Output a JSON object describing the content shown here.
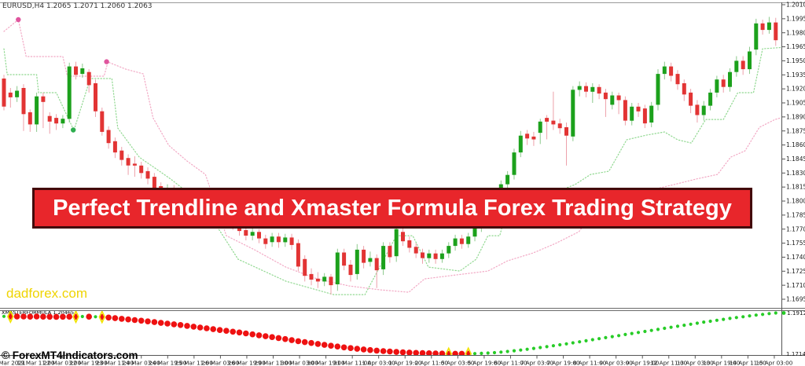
{
  "window": {
    "ohlc_header": "EURUSD,H4 1.2065 1.2071 1.2060 1.2063"
  },
  "banner": {
    "text": "Perfect Trendline and Xmaster Formula Forex Trading Strategy",
    "bg_color": "#e8262b",
    "border_color": "#420a0b",
    "text_color": "#ffffff"
  },
  "watermark": {
    "text": "dadforex.com",
    "color": "#efd402"
  },
  "copyright": {
    "text": "© ForexMT4Indicators.com"
  },
  "indicator_panel": {
    "label": "XMASTERFORMULA 1.20465",
    "max_label": "1.19122",
    "min_label": "1.17148"
  },
  "price_axis": {
    "labels": [
      "1.2010",
      "1.1995",
      "1.1980",
      "1.1965",
      "1.1950",
      "1.1935",
      "1.1920",
      "1.1905",
      "1.1890",
      "1.1875",
      "1.1860",
      "1.1845",
      "1.1830",
      "1.1815",
      "1.1800",
      "1.1785",
      "1.1770",
      "1.1755",
      "1.1740",
      "1.1725",
      "1.1710",
      "1.1695"
    ]
  },
  "time_axis": {
    "labels": [
      "8 Mar 2021",
      "19 Mar 11:00",
      "22 Mar 03:00",
      "22 Mar 19:00",
      "23 Mar 11:00",
      "24 Mar 03:00",
      "24 Mar 19:00",
      "25 Mar 11:00",
      "26 Mar 03:00",
      "26 Mar 19:00",
      "29 Mar 11:00",
      "30 Mar 03:00",
      "30 Mar 19:00",
      "31 Mar 11:00",
      "1 Apr 03:00",
      "1 Apr 19:00",
      "2 Apr 11:00",
      "5 Apr 03:00",
      "5 Apr 19:00",
      "6 Apr 11:00",
      "7 Apr 03:00",
      "7 Apr 19:00",
      "8 Apr 11:00",
      "9 Apr 03:00",
      "9 Apr 19:00",
      "12 Apr 11:00",
      "13 Apr 03:00",
      "13 Apr 19:00",
      "14 Apr 11:00",
      "15 Apr 03:00"
    ]
  },
  "colors": {
    "bull_body": "#1ca11c",
    "bear_body": "#e23434",
    "bull_wick": "#8cc98c",
    "bear_wick": "#eda0aa",
    "trendline_pink": "#f2a8c4",
    "trendline_green": "#90d890",
    "swing_pink": "#e0559e",
    "swing_green": "#2fae4f",
    "indicator_red": "#ee1111",
    "indicator_green": "#27cc27",
    "signal_yellow": "#f2e300",
    "axis_line": "#555555",
    "grid_text": "#1a1a1a"
  },
  "chart_data": {
    "type": "candlestick",
    "symbol": "EURUSD",
    "timeframe": "H4",
    "ylim": [
      1.1695,
      1.201
    ],
    "indicator_ylim": [
      1.17148,
      1.19122
    ],
    "candles": [
      [
        1.1931,
        1.1935,
        1.1897,
        1.1901
      ],
      [
        1.1916,
        1.1921,
        1.19,
        1.1911
      ],
      [
        1.1911,
        1.1923,
        1.1906,
        1.1918
      ],
      [
        1.1921,
        1.1925,
        1.1875,
        1.1893
      ],
      [
        1.1895,
        1.1898,
        1.1874,
        1.1882
      ],
      [
        1.1882,
        1.1916,
        1.1874,
        1.1912
      ],
      [
        1.1912,
        1.1916,
        1.1878,
        1.1906
      ],
      [
        1.1891,
        1.1895,
        1.1872,
        1.1885
      ],
      [
        1.1889,
        1.1893,
        1.1876,
        1.1883
      ],
      [
        1.1883,
        1.1892,
        1.1878,
        1.1888
      ],
      [
        1.1888,
        1.1948,
        1.1884,
        1.1944
      ],
      [
        1.1944,
        1.1949,
        1.193,
        1.1935
      ],
      [
        1.1936,
        1.1947,
        1.1932,
        1.1942
      ],
      [
        1.1938,
        1.1941,
        1.1916,
        1.1924
      ],
      [
        1.1926,
        1.193,
        1.189,
        1.1896
      ],
      [
        1.1896,
        1.19,
        1.187,
        1.1874
      ],
      [
        1.1876,
        1.188,
        1.1856,
        1.1862
      ],
      [
        1.1864,
        1.1868,
        1.1846,
        1.1852
      ],
      [
        1.1854,
        1.1858,
        1.1838,
        1.1844
      ],
      [
        1.1846,
        1.185,
        1.1828,
        1.1838
      ],
      [
        1.184,
        1.1848,
        1.1826,
        1.1838
      ],
      [
        1.1838,
        1.1842,
        1.1824,
        1.183
      ],
      [
        1.1832,
        1.1836,
        1.1818,
        1.1824
      ],
      [
        1.1826,
        1.183,
        1.1806,
        1.1814
      ],
      [
        1.1816,
        1.182,
        1.1802,
        1.1808
      ],
      [
        1.1808,
        1.1818,
        1.1803,
        1.1813
      ],
      [
        1.1813,
        1.1817,
        1.1799,
        1.1804
      ],
      [
        1.1806,
        1.181,
        1.1794,
        1.1799
      ],
      [
        1.18,
        1.1805,
        1.1789,
        1.1794
      ],
      [
        1.1796,
        1.18,
        1.1784,
        1.1789
      ],
      [
        1.179,
        1.1794,
        1.1779,
        1.1784
      ],
      [
        1.1785,
        1.1794,
        1.178,
        1.179
      ],
      [
        1.179,
        1.1794,
        1.1777,
        1.1782
      ],
      [
        1.1783,
        1.1787,
        1.1771,
        1.1776
      ],
      [
        1.1777,
        1.1786,
        1.1772,
        1.1782
      ],
      [
        1.1782,
        1.1785,
        1.1769,
        1.1774
      ],
      [
        1.1774,
        1.1778,
        1.1763,
        1.1768
      ],
      [
        1.1769,
        1.1773,
        1.1758,
        1.1763
      ],
      [
        1.1763,
        1.1771,
        1.1758,
        1.1767
      ],
      [
        1.1767,
        1.177,
        1.1755,
        1.176
      ],
      [
        1.176,
        1.1764,
        1.1749,
        1.1754
      ],
      [
        1.1756,
        1.1766,
        1.1751,
        1.1762
      ],
      [
        1.1762,
        1.1766,
        1.175,
        1.1756
      ],
      [
        1.1756,
        1.1765,
        1.1751,
        1.1761
      ],
      [
        1.1761,
        1.1765,
        1.1748,
        1.1753
      ],
      [
        1.1755,
        1.1759,
        1.1725,
        1.173
      ],
      [
        1.1738,
        1.1742,
        1.1714,
        1.172
      ],
      [
        1.1722,
        1.1728,
        1.171,
        1.1716
      ],
      [
        1.1717,
        1.1724,
        1.1707,
        1.1714
      ],
      [
        1.1714,
        1.1723,
        1.1709,
        1.1719
      ],
      [
        1.1719,
        1.1722,
        1.17,
        1.171
      ],
      [
        1.1711,
        1.1749,
        1.1704,
        1.1745
      ],
      [
        1.1745,
        1.1749,
        1.1726,
        1.1731
      ],
      [
        1.1732,
        1.1737,
        1.1714,
        1.1721
      ],
      [
        1.1722,
        1.1754,
        1.1716,
        1.1748
      ],
      [
        1.1748,
        1.1752,
        1.1728,
        1.1734
      ],
      [
        1.1735,
        1.1746,
        1.173,
        1.1739
      ],
      [
        1.1739,
        1.1743,
        1.1707,
        1.1726
      ],
      [
        1.1727,
        1.1756,
        1.1721,
        1.1752
      ],
      [
        1.1752,
        1.1756,
        1.1734,
        1.174
      ],
      [
        1.1741,
        1.1774,
        1.1735,
        1.177
      ],
      [
        1.1767,
        1.1771,
        1.1752,
        1.1757
      ],
      [
        1.1758,
        1.1762,
        1.1745,
        1.175
      ],
      [
        1.1751,
        1.1755,
        1.1739,
        1.1744
      ],
      [
        1.1745,
        1.1749,
        1.1733,
        1.1739
      ],
      [
        1.1739,
        1.1748,
        1.1734,
        1.1744
      ],
      [
        1.1744,
        1.1748,
        1.1733,
        1.1738
      ],
      [
        1.1738,
        1.1748,
        1.1734,
        1.1744
      ],
      [
        1.1744,
        1.1756,
        1.1739,
        1.1752
      ],
      [
        1.1752,
        1.1764,
        1.1747,
        1.176
      ],
      [
        1.176,
        1.1764,
        1.1749,
        1.1754
      ],
      [
        1.1754,
        1.1766,
        1.175,
        1.1762
      ],
      [
        1.1762,
        1.1776,
        1.1757,
        1.1772
      ],
      [
        1.1772,
        1.1788,
        1.1767,
        1.1784
      ],
      [
        1.1784,
        1.18,
        1.1779,
        1.1796
      ],
      [
        1.1796,
        1.1812,
        1.1791,
        1.1808
      ],
      [
        1.1808,
        1.1822,
        1.1803,
        1.1818
      ],
      [
        1.1818,
        1.1832,
        1.1813,
        1.1828
      ],
      [
        1.1828,
        1.1856,
        1.1823,
        1.1852
      ],
      [
        1.1852,
        1.1875,
        1.1847,
        1.187
      ],
      [
        1.1872,
        1.1876,
        1.186,
        1.1867
      ],
      [
        1.1869,
        1.1874,
        1.1859,
        1.1866
      ],
      [
        1.1873,
        1.1888,
        1.1861,
        1.1885
      ],
      [
        1.1889,
        1.1892,
        1.1866,
        1.1885
      ],
      [
        1.1886,
        1.1917,
        1.1876,
        1.1882
      ],
      [
        1.1883,
        1.1888,
        1.1872,
        1.1878
      ],
      [
        1.1879,
        1.1884,
        1.1838,
        1.187
      ],
      [
        1.1869,
        1.1923,
        1.1864,
        1.1919
      ],
      [
        1.1919,
        1.1928,
        1.1912,
        1.1923
      ],
      [
        1.1923,
        1.1927,
        1.1911,
        1.1917
      ],
      [
        1.1917,
        1.1926,
        1.1905,
        1.1922
      ],
      [
        1.1922,
        1.1925,
        1.1909,
        1.1915
      ],
      [
        1.1916,
        1.192,
        1.189,
        1.1909
      ],
      [
        1.1903,
        1.1917,
        1.1898,
        1.1913
      ],
      [
        1.1913,
        1.1916,
        1.1893,
        1.1908
      ],
      [
        1.1908,
        1.1912,
        1.1881,
        1.1886
      ],
      [
        1.1886,
        1.1905,
        1.1881,
        1.1901
      ],
      [
        1.1901,
        1.1905,
        1.189,
        1.1896
      ],
      [
        1.1899,
        1.1903,
        1.1878,
        1.1883
      ],
      [
        1.1884,
        1.1906,
        1.1879,
        1.1902
      ],
      [
        1.1903,
        1.1941,
        1.1897,
        1.1936
      ],
      [
        1.1936,
        1.1949,
        1.193,
        1.1944
      ],
      [
        1.1944,
        1.1948,
        1.1928,
        1.1934
      ],
      [
        1.1936,
        1.194,
        1.1919,
        1.1925
      ],
      [
        1.1926,
        1.193,
        1.1907,
        1.1914
      ],
      [
        1.1916,
        1.192,
        1.1894,
        1.1902
      ],
      [
        1.1903,
        1.1908,
        1.1884,
        1.1892
      ],
      [
        1.1892,
        1.1907,
        1.1886,
        1.1902
      ],
      [
        1.1902,
        1.192,
        1.1897,
        1.1916
      ],
      [
        1.1916,
        1.1934,
        1.1911,
        1.193
      ],
      [
        1.193,
        1.1935,
        1.1916,
        1.1922
      ],
      [
        1.1922,
        1.1942,
        1.1917,
        1.1938
      ],
      [
        1.1938,
        1.1955,
        1.1933,
        1.195
      ],
      [
        1.195,
        1.1955,
        1.1935,
        1.1941
      ],
      [
        1.1941,
        1.1965,
        1.1936,
        1.196
      ],
      [
        1.1962,
        1.1995,
        1.1956,
        1.199
      ],
      [
        1.199,
        1.1994,
        1.1978,
        1.1983
      ],
      [
        1.1983,
        1.1997,
        1.1979,
        1.1991
      ],
      [
        1.1991,
        1.1996,
        1.1966,
        1.1972
      ]
    ],
    "swing_dots": [
      {
        "i": 2.2,
        "price": 1.1994,
        "color": "pink"
      },
      {
        "i": 10.6,
        "price": 1.1876,
        "color": "green"
      },
      {
        "i": 15.7,
        "price": 1.1949,
        "color": "pink"
      }
    ],
    "trendlines": {
      "resistance_pink": [
        [
          0,
          1.19814
        ],
        [
          2.2,
          1.1994
        ],
        [
          3.4,
          1.19546
        ],
        [
          9.0,
          1.19546
        ],
        [
          9.7,
          1.19336
        ],
        [
          15.3,
          1.19336
        ],
        [
          15.9,
          1.19487
        ],
        [
          18.6,
          1.19411
        ],
        [
          21.3,
          1.19361
        ],
        [
          22.8,
          1.1889
        ],
        [
          25.2,
          1.18596
        ],
        [
          28.0,
          1.18428
        ],
        [
          30.8,
          1.18285
        ],
        [
          34.0,
          1.1763
        ],
        [
          38.3,
          1.17479
        ],
        [
          43.1,
          1.17294
        ],
        [
          47.9,
          1.17168
        ],
        [
          52.8,
          1.17092
        ],
        [
          57.6,
          1.1705
        ],
        [
          61.9,
          1.17025
        ],
        [
          64.3,
          1.17168
        ],
        [
          69.1,
          1.1721
        ],
        [
          74.0,
          1.17252
        ],
        [
          77.0,
          1.17361
        ],
        [
          80.9,
          1.17445
        ],
        [
          84.3,
          1.17546
        ],
        [
          87.9,
          1.17672
        ],
        [
          91.0,
          1.17949
        ],
        [
          95.2,
          1.18033
        ],
        [
          98.8,
          1.18117
        ],
        [
          102.4,
          1.18176
        ],
        [
          105.8,
          1.18235
        ],
        [
          109.1,
          1.18285
        ],
        [
          111.1,
          1.1847
        ],
        [
          113.3,
          1.18537
        ],
        [
          115.5,
          1.18789
        ],
        [
          117.9,
          1.18873
        ],
        [
          119.7,
          1.18907
        ]
      ],
      "support_green": [
        [
          0,
          1.19629
        ],
        [
          0.5,
          1.19352
        ],
        [
          5.0,
          1.19352
        ],
        [
          5.3,
          1.19159
        ],
        [
          8.0,
          1.19159
        ],
        [
          10.7,
          1.18756
        ],
        [
          13.2,
          1.1931
        ],
        [
          16.5,
          1.1931
        ],
        [
          17.4,
          1.18781
        ],
        [
          20.7,
          1.1847
        ],
        [
          25.5,
          1.18235
        ],
        [
          30.4,
          1.17966
        ],
        [
          35.8,
          1.17378
        ],
        [
          43.1,
          1.17143
        ],
        [
          50.4,
          1.17
        ],
        [
          55.2,
          1.17
        ],
        [
          60.0,
          1.1763
        ],
        [
          62.5,
          1.1763
        ],
        [
          64.9,
          1.17294
        ],
        [
          69.7,
          1.17252
        ],
        [
          72.2,
          1.17378
        ],
        [
          74.0,
          1.1763
        ],
        [
          75.8,
          1.1763
        ],
        [
          77.6,
          1.18092
        ],
        [
          80.0,
          1.18092
        ],
        [
          81.2,
          1.17756
        ],
        [
          84.3,
          1.17731
        ],
        [
          85.7,
          1.18134
        ],
        [
          87.3,
          1.18176
        ],
        [
          89.7,
          1.18285
        ],
        [
          92.5,
          1.18319
        ],
        [
          95.2,
          1.18655
        ],
        [
          98.2,
          1.18705
        ],
        [
          101.0,
          1.18739
        ],
        [
          103.0,
          1.18655
        ],
        [
          105.1,
          1.18621
        ],
        [
          107.3,
          1.18873
        ],
        [
          110.0,
          1.18873
        ],
        [
          112.2,
          1.19159
        ],
        [
          114.6,
          1.19159
        ],
        [
          116.0,
          1.19629
        ],
        [
          119.7,
          1.19646
        ]
      ]
    },
    "xmaster_indicator": {
      "scale_max": 1.19122,
      "scale_min": 1.17148,
      "current_value": 1.19122,
      "values": [
        1.1896,
        1.1895,
        1.18955,
        1.1895,
        1.18945,
        1.1895,
        1.18945,
        1.1894,
        1.18935,
        1.1894,
        1.18945,
        1.1894,
        1.1895,
        1.18945,
        1.1894,
        1.1893,
        1.189,
        1.1887,
        1.1884,
        1.1881,
        1.1878,
        1.1875,
        1.18715,
        1.1868,
        1.18645,
        1.1861,
        1.18575,
        1.1854,
        1.185,
        1.1846,
        1.1842,
        1.1838,
        1.1834,
        1.183,
        1.1826,
        1.1822,
        1.1818,
        1.18135,
        1.1809,
        1.18045,
        1.18,
        1.17955,
        1.1791,
        1.1786,
        1.1781,
        1.1776,
        1.17715,
        1.1767,
        1.17625,
        1.1758,
        1.1754,
        1.175,
        1.1746,
        1.17425,
        1.1739,
        1.1736,
        1.1733,
        1.17305,
        1.1728,
        1.1726,
        1.1724,
        1.17225,
        1.1721,
        1.17195,
        1.17185,
        1.17175,
        1.17168,
        1.1716,
        1.17148,
        1.1715,
        1.17152,
        1.17155,
        1.1716,
        1.1717,
        1.17185,
        1.17205,
        1.1723,
        1.1726,
        1.17295,
        1.1733,
        1.1737,
        1.1741,
        1.1745,
        1.17495,
        1.1754,
        1.17585,
        1.1763,
        1.1768,
        1.1773,
        1.1778,
        1.1783,
        1.1788,
        1.1793,
        1.1798,
        1.1803,
        1.1808,
        1.1813,
        1.1818,
        1.1823,
        1.1828,
        1.1833,
        1.1838,
        1.1843,
        1.1848,
        1.1853,
        1.1858,
        1.1863,
        1.1868,
        1.18725,
        1.1877,
        1.18815,
        1.1886,
        1.189,
        1.1894,
        1.1898,
        1.1902,
        1.19055,
        1.1909,
        1.19122
      ],
      "green_dot_indices": [
        0,
        12,
        14
      ],
      "green_run_start": 72,
      "signal_marker_indices": [
        1,
        11,
        15,
        68,
        71
      ]
    }
  }
}
